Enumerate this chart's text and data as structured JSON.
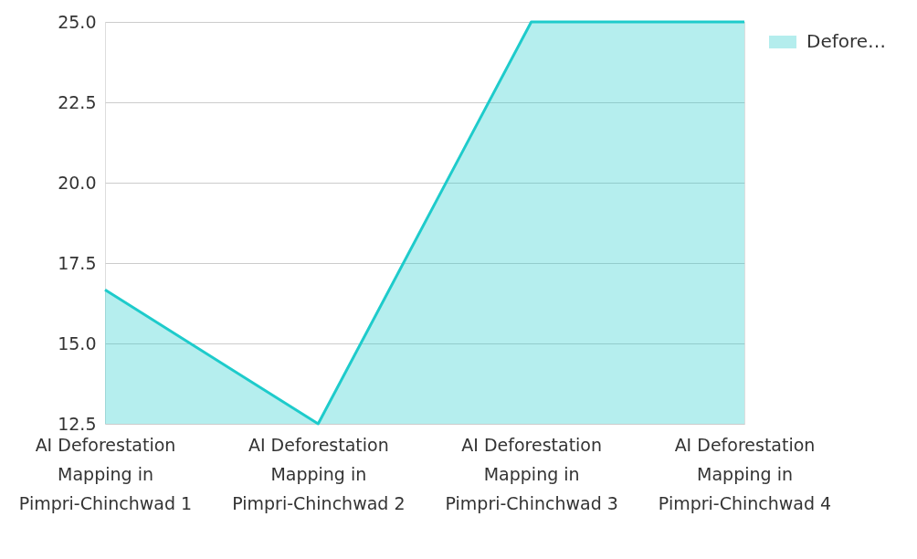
{
  "chart_data": {
    "type": "area",
    "categories": [
      "AI Deforestation Mapping in Pimpri-Chinchwad 1",
      "AI Deforestation Mapping in Pimpri-Chinchwad 2",
      "AI Deforestation Mapping in Pimpri-Chinchwad 3",
      "AI Deforestation Mapping in Pimpri-Chinchwad 4"
    ],
    "series": [
      {
        "name": "Defore…",
        "color": "#1ecbcb",
        "values": [
          16.67,
          12.5,
          25,
          25
        ]
      }
    ],
    "ylim": [
      12.5,
      25
    ],
    "yticks": [
      12.5,
      {
        "value": 15,
        "label": "15.0"
      },
      17.5,
      {
        "value": 20,
        "label": "20.0"
      },
      22.5,
      {
        "value": 25,
        "label": "25.0"
      }
    ],
    "grid": "y",
    "legend": "top right"
  }
}
